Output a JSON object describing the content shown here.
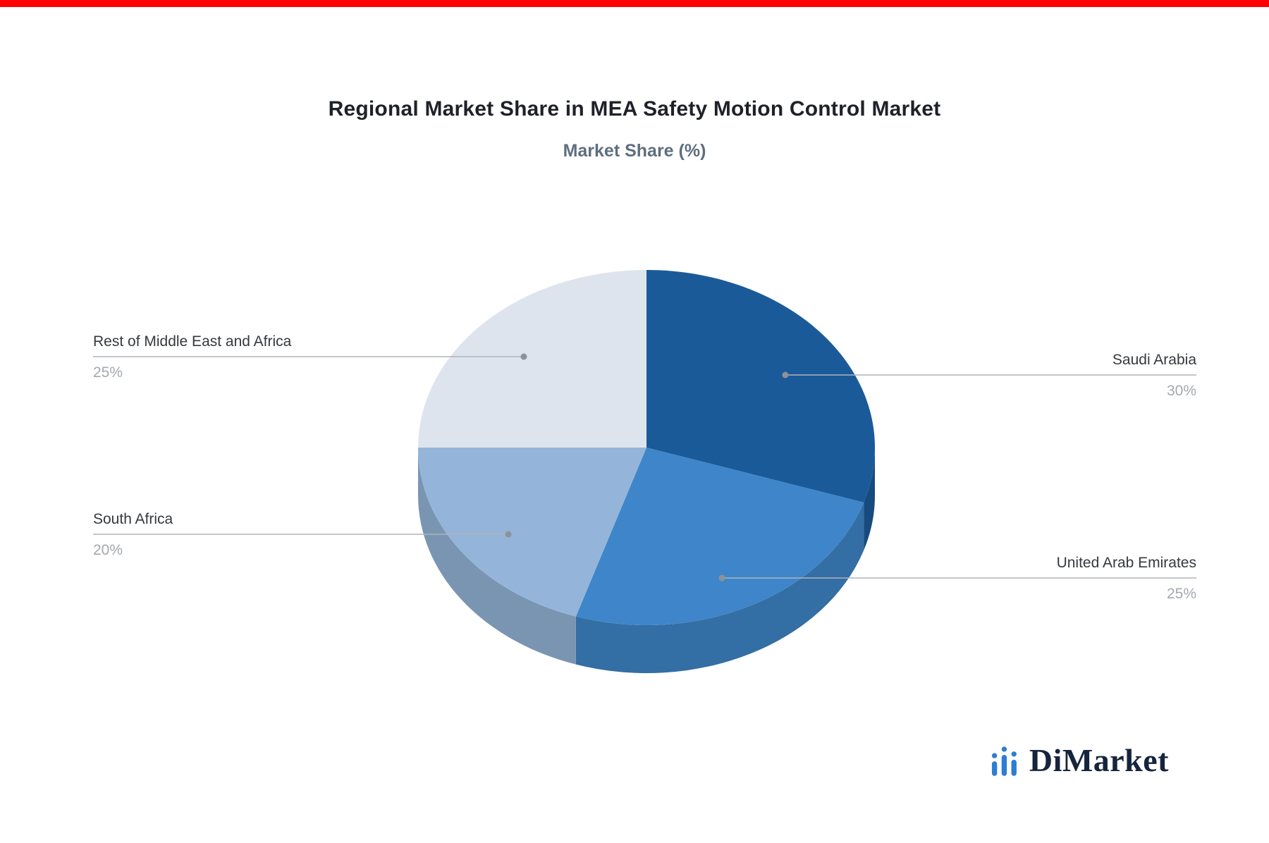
{
  "page": {
    "background_color": "#ffffff",
    "top_strip_color": "#ff0000"
  },
  "chart_data": {
    "type": "pie",
    "title": "Regional Market Share in MEA Safety Motion Control Market",
    "subtitle": "Market Share (%)",
    "unit": "%",
    "start_angle_deg": 0,
    "direction": "clockwise",
    "style": "3d",
    "slices": [
      {
        "label": "Saudi Arabia",
        "value": 30,
        "value_label": "30%",
        "color": "#1b5a99",
        "side_color": "#174b80",
        "label_side": "right"
      },
      {
        "label": "United Arab Emirates",
        "value": 25,
        "value_label": "25%",
        "color": "#3e86c9",
        "side_color": "#336ea5",
        "label_side": "right"
      },
      {
        "label": "South Africa",
        "value": 20,
        "value_label": "20%",
        "color": "#94b5d9",
        "side_color": "#7a95b2",
        "label_side": "left"
      },
      {
        "label": "Rest of Middle East and Africa",
        "value": 25,
        "value_label": "25%",
        "color": "#dee4ee",
        "side_color": "#b6bbc3",
        "label_side": "left"
      }
    ],
    "leader_line_color": "#afb4b9",
    "leader_dot_color": "#8d9298"
  },
  "branding": {
    "logo_text": "DiMarket",
    "logo_icon": "bar-chart-icon",
    "logo_text_color": "#16243d",
    "logo_icon_color": "#2d7dd2"
  }
}
